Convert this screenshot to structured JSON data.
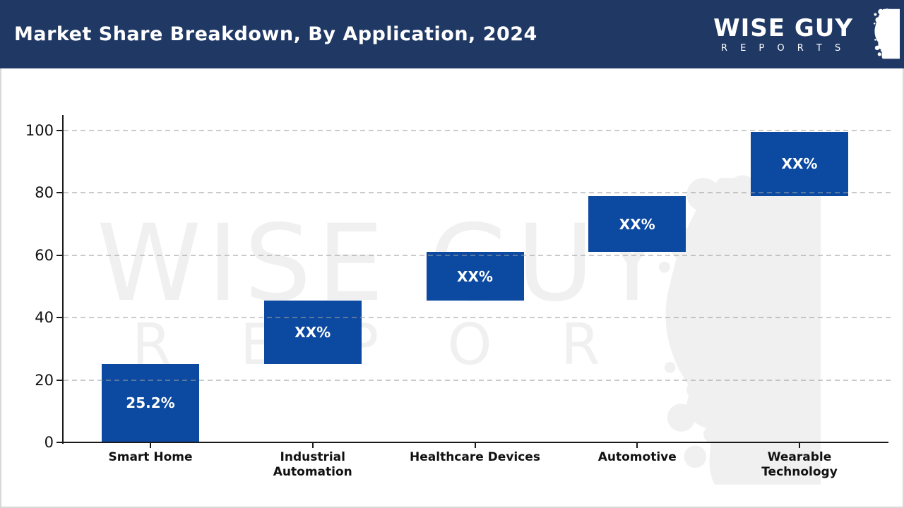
{
  "header": {
    "title": "Market Share Breakdown, By Application, 2024",
    "bg_color": "#1f3864",
    "text_color": "#ffffff",
    "logo": {
      "line1": "WISE GUY",
      "line2": "R E P O R T S"
    }
  },
  "watermark": {
    "line1": "WISE GUY",
    "line2": "R E P O R T S"
  },
  "chart_data": {
    "type": "bar",
    "subtype": "waterfall",
    "title": "Market Share Breakdown, By Application, 2024",
    "categories": [
      "Smart Home",
      "Industrial Automation",
      "Healthcare Devices",
      "Automotive",
      "Wearable Technology"
    ],
    "tick_label_lines": [
      [
        "Smart Home"
      ],
      [
        "Industrial",
        "Automation"
      ],
      [
        "Healthcare Devices"
      ],
      [
        "Automotive"
      ],
      [
        "Wearable",
        "Technology"
      ]
    ],
    "segments": [
      {
        "category": "Smart Home",
        "start": 0,
        "end": 25.2,
        "label": "25.2%"
      },
      {
        "category": "Industrial Automation",
        "start": 25.2,
        "end": 45.5,
        "label": "XX%"
      },
      {
        "category": "Healthcare Devices",
        "start": 45.5,
        "end": 61.0,
        "label": "XX%"
      },
      {
        "category": "Automotive",
        "start": 61.0,
        "end": 79.0,
        "label": "XX%"
      },
      {
        "category": "Wearable Technology",
        "start": 79.0,
        "end": 99.6,
        "label": "XX%"
      }
    ],
    "y_ticks": [
      0,
      20,
      40,
      60,
      80,
      100
    ],
    "ylim": [
      0,
      105
    ],
    "grid": "dashed-horizontal",
    "legend": "none",
    "bar_color": "#0c49a0",
    "bar_label_color": "#ffffff",
    "axis_color": "#1a1a1a",
    "grid_color": "#cfcfcf"
  }
}
